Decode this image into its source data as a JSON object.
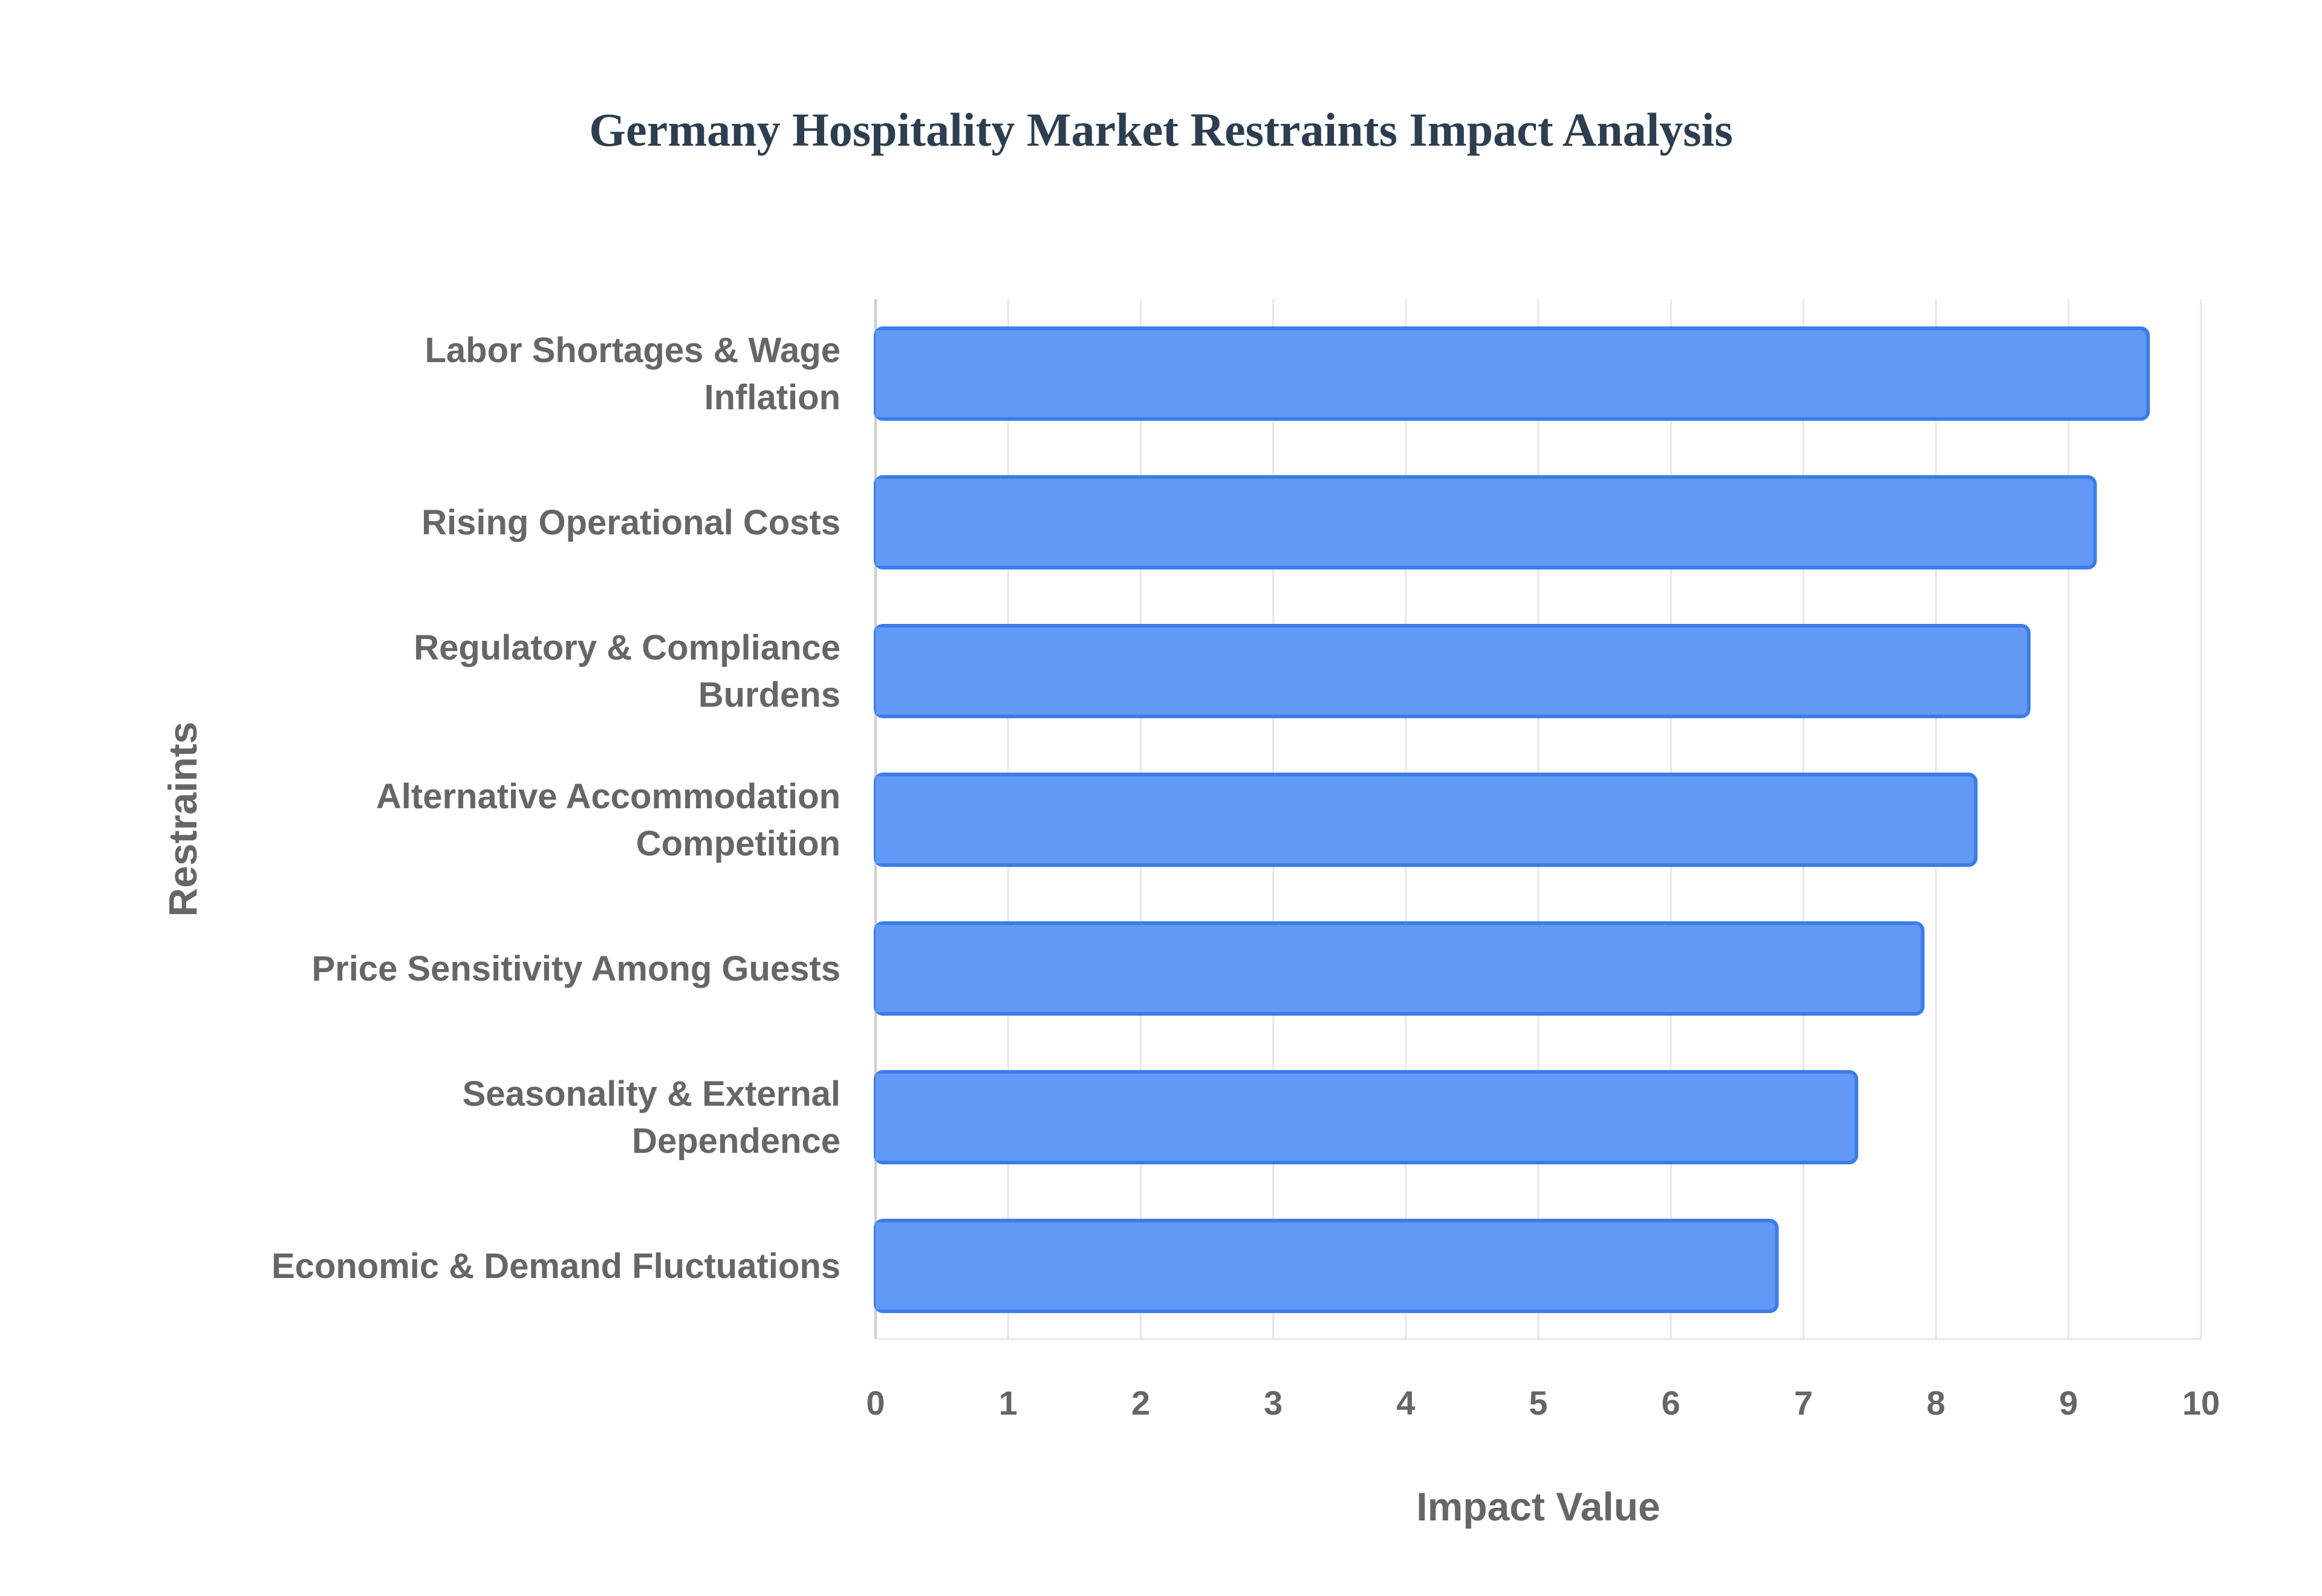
{
  "chart_data": {
    "type": "bar",
    "orientation": "horizontal",
    "title": "Germany Hospitality Market Restraints Impact Analysis",
    "xlabel": "Impact Value",
    "ylabel": "Restraints",
    "xlim": [
      0,
      10
    ],
    "xticks": [
      "0",
      "1",
      "2",
      "3",
      "4",
      "5",
      "6",
      "7",
      "8",
      "9",
      "10"
    ],
    "grid": true,
    "categories": [
      [
        "Labor Shortages & Wage",
        "Inflation"
      ],
      [
        "Rising Operational Costs"
      ],
      [
        "Regulatory & Compliance",
        "Burdens"
      ],
      [
        "Alternative Accommodation",
        "Competition"
      ],
      [
        "Price Sensitivity Among Guests"
      ],
      [
        "Seasonality & External",
        "Dependence"
      ],
      [
        "Economic & Demand Fluctuations"
      ]
    ],
    "values": [
      9.6,
      9.2,
      8.7,
      8.3,
      7.9,
      7.4,
      6.8
    ],
    "bar_color": "#6399f6",
    "bar_border_color": "#3b7de8"
  }
}
